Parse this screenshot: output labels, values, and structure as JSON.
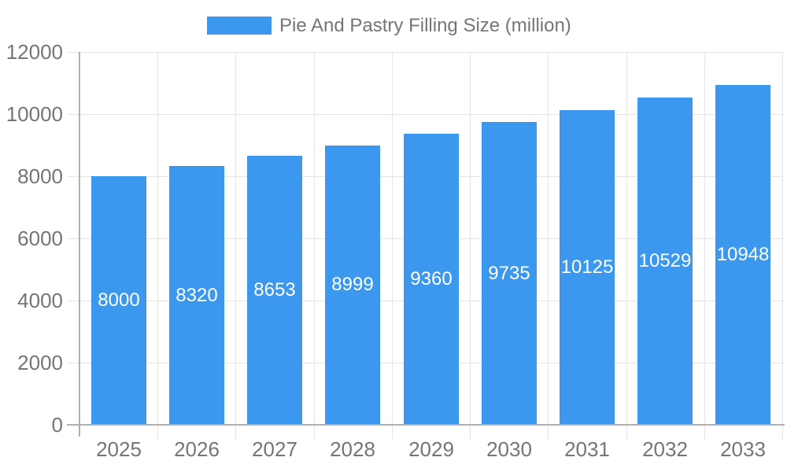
{
  "legend": {
    "label": "Pie And Pastry Filling Size (million)"
  },
  "colors": {
    "bar": "#3b98ee",
    "axis_line": "#b0b0b0",
    "gridline": "#e5e5e5",
    "axis_label": "#757575",
    "bar_label": "#ffffff",
    "background": "#ffffff"
  },
  "chart_data": {
    "type": "bar",
    "title": "Pie And Pastry Filling Size (million)",
    "categories": [
      "2025",
      "2026",
      "2027",
      "2028",
      "2029",
      "2030",
      "2031",
      "2032",
      "2033"
    ],
    "values": [
      8000,
      8320,
      8653,
      8999,
      9360,
      9735,
      10125,
      10529,
      10948
    ],
    "bar_labels": [
      "8000",
      "8320",
      "8653",
      "8999",
      "9360",
      "9735",
      "10125",
      "10529",
      "10948"
    ],
    "xlabel": "",
    "ylabel": "",
    "ylim": [
      0,
      12000
    ],
    "yticks": [
      0,
      2000,
      4000,
      6000,
      8000,
      10000,
      12000
    ],
    "ytick_labels": [
      "0",
      "2000",
      "4000",
      "6000",
      "8000",
      "10000",
      "12000"
    ],
    "grid": true,
    "legend_position": "top",
    "bar_label_position": "inside-center"
  }
}
